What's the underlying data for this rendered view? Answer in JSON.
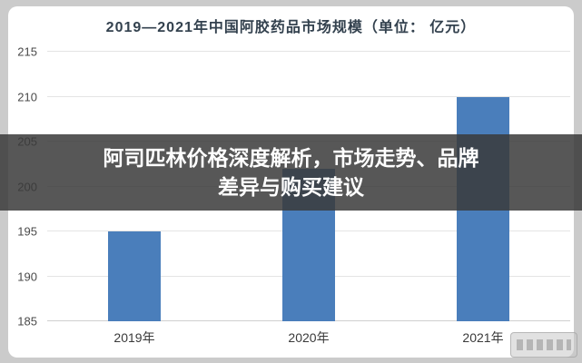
{
  "frame": {
    "border_color": "#cbcbcb",
    "card_color": "#ffffff"
  },
  "overlay": {
    "line1": "阿司匹林价格深度解析，市场走势、品牌",
    "line2": "差异与购买建议",
    "bg": "rgba(58,58,58,0.85)",
    "text_color": "#ffffff"
  },
  "chart_data": {
    "type": "bar",
    "title": "2019—2021年中国阿胶药品市场规模（单位： 亿元）",
    "categories": [
      "2019年",
      "2020年",
      "2021年"
    ],
    "values": [
      195,
      202,
      210
    ],
    "ylim": [
      185,
      215
    ],
    "yticks": [
      185,
      190,
      195,
      200,
      205,
      210,
      215
    ],
    "xlabel": "",
    "ylabel": "",
    "grid": true,
    "legend": false,
    "bar_color": "#4a7ebb"
  }
}
